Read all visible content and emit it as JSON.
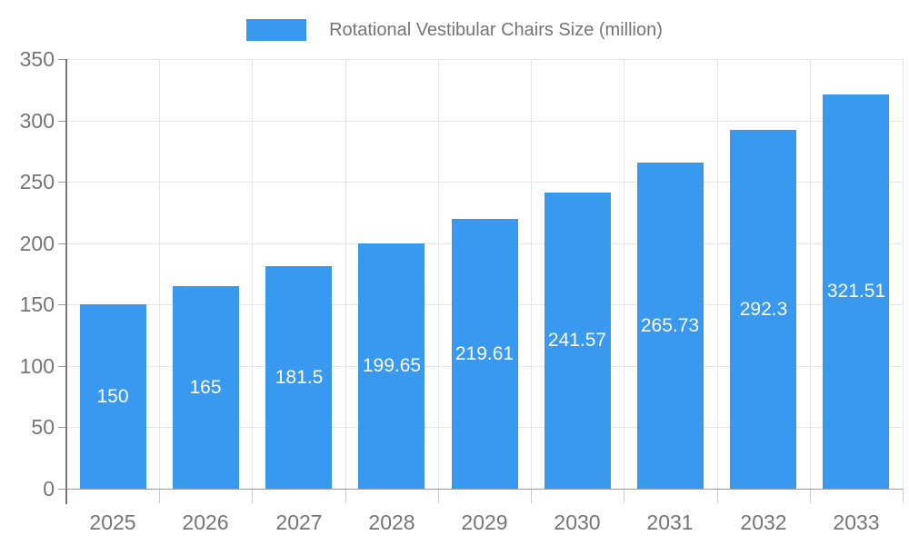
{
  "legend": {
    "label": "Rotational Vestibular Chairs Size (million)"
  },
  "chart_data": {
    "type": "bar",
    "title": "Rotational Vestibular Chairs Size (million)",
    "categories": [
      "2025",
      "2026",
      "2027",
      "2028",
      "2029",
      "2030",
      "2031",
      "2032",
      "2033"
    ],
    "values": [
      150,
      165,
      181.5,
      199.65,
      219.61,
      241.57,
      265.73,
      292.3,
      321.51
    ],
    "value_labels": [
      "150",
      "165",
      "181.5",
      "199.65",
      "219.61",
      "241.57",
      "265.73",
      "292.3",
      "321.51"
    ],
    "xlabel": "",
    "ylabel": "",
    "ylim": [
      0,
      350
    ],
    "yticks": [
      0,
      50,
      100,
      150,
      200,
      250,
      300,
      350
    ],
    "ytick_labels": [
      "0",
      "50",
      "100",
      "150",
      "200",
      "250",
      "300",
      "350"
    ],
    "grid": true,
    "legend_position": "top",
    "colors": {
      "bar": "#3999EE",
      "grid": "#e6e6e6",
      "axis_y": "#777777",
      "axis_x": "#9a9a9a",
      "tick": "#cccccc",
      "text": "#757575",
      "bar_label_text": "#ffffff"
    }
  }
}
